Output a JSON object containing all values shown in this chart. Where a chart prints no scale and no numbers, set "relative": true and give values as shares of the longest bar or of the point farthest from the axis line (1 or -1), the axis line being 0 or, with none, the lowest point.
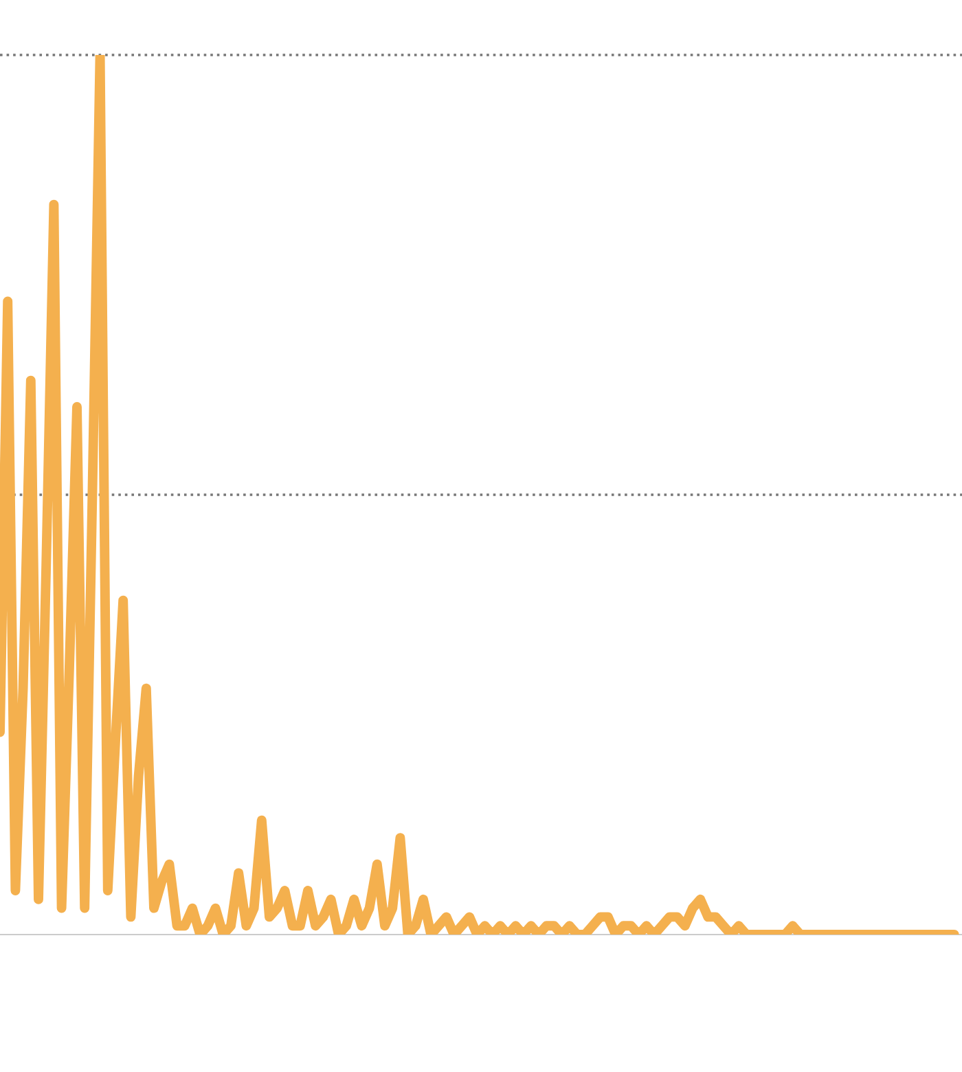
{
  "chart_data": {
    "type": "line",
    "relative": true,
    "categories": [
      null,
      null,
      null,
      null,
      null,
      null,
      null,
      null,
      null,
      null,
      null,
      null,
      null,
      null,
      null,
      null,
      null,
      null,
      null,
      null,
      null,
      null,
      null,
      null,
      null,
      null,
      null,
      null,
      null,
      null,
      null,
      null,
      null,
      null,
      null,
      null,
      null,
      null,
      null,
      null,
      null,
      null,
      null,
      null,
      null,
      null,
      null,
      null,
      null,
      null,
      null,
      null,
      null,
      null,
      null,
      null,
      null,
      null,
      null,
      null,
      null,
      null,
      null,
      null,
      null,
      null,
      null,
      null,
      null,
      null,
      null,
      null,
      null,
      null,
      null,
      null,
      null,
      null,
      null,
      null,
      null,
      null,
      null,
      null,
      null,
      null,
      null,
      null,
      null,
      null,
      null,
      null,
      null,
      null,
      null,
      null,
      null,
      null,
      null,
      null,
      null,
      null,
      null,
      null,
      null,
      null,
      null,
      null,
      null,
      null,
      null,
      null,
      null,
      null,
      null,
      null,
      null,
      null,
      null,
      null,
      null,
      null,
      null,
      null,
      null
    ],
    "grid": false,
    "legend": false,
    "marker": "none",
    "line_style": "solid",
    "ref_lines": [
      {
        "axis": "y",
        "value": 1,
        "color": "#777777",
        "line_style": "dotted"
      },
      {
        "axis": "y",
        "value": 0.5,
        "color": "#777777",
        "line_style": "dotted"
      }
    ],
    "series": [
      {
        "color": "#f4b04e",
        "values": [
          0.23,
          0.72,
          0.05,
          0.28,
          0.63,
          0.04,
          0.42,
          0.83,
          0.03,
          0.3,
          0.6,
          0.03,
          0.5,
          1.0,
          0.05,
          0.22,
          0.38,
          0.02,
          0.18,
          0.28,
          0.03,
          0.06,
          0.08,
          0.01,
          0.01,
          0.03,
          0.0,
          0.01,
          0.03,
          0.0,
          0.01,
          0.07,
          0.01,
          0.03,
          0.13,
          0.02,
          0.03,
          0.05,
          0.01,
          0.01,
          0.05,
          0.01,
          0.02,
          0.04,
          0.0,
          0.01,
          0.04,
          0.01,
          0.03,
          0.08,
          0.01,
          0.03,
          0.11,
          0.0,
          0.01,
          0.04,
          0.0,
          0.01,
          0.02,
          0.0,
          0.01,
          0.02,
          0.0,
          0.01,
          0.0,
          0.01,
          0.0,
          0.01,
          0.0,
          0.01,
          0.0,
          0.01,
          0.01,
          0.0,
          0.01,
          0.0,
          0.0,
          0.01,
          0.02,
          0.02,
          0.0,
          0.01,
          0.01,
          0.0,
          0.01,
          0.0,
          0.01,
          0.02,
          0.02,
          0.01,
          0.03,
          0.04,
          0.02,
          0.02,
          0.01,
          0.0,
          0.01,
          0.0,
          0.0,
          0.0,
          0.0,
          0.0,
          0.0,
          0.01,
          0,
          0,
          0,
          0,
          0,
          0,
          0,
          0,
          0,
          0,
          0,
          0,
          0,
          0,
          0,
          0,
          0,
          0,
          0,
          0,
          0
        ]
      }
    ]
  }
}
